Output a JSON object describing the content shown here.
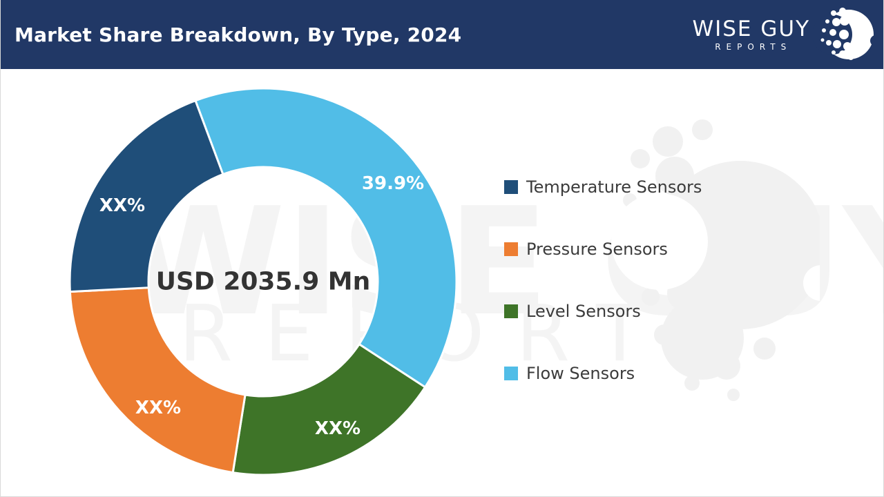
{
  "header": {
    "title": "Market Share Breakdown, By Type, 2024",
    "bg_color": "#213866",
    "logo": {
      "line1": "WISE GUY",
      "line2": "REPORTS"
    }
  },
  "watermark": {
    "line1": "WISE GUY",
    "line2": "REPORTS"
  },
  "chart_data": {
    "type": "pie",
    "subtype": "donut",
    "title": "Market Share Breakdown, By Type, 2024",
    "center_label": "USD 2035.9 Mn",
    "categories": [
      "Flow Sensors",
      "Level Sensors",
      "Pressure Sensors",
      "Temperature Sensors"
    ],
    "values_shown_as": [
      "39.9%",
      "XX%",
      "XX%",
      "XX%"
    ],
    "segments": [
      {
        "id": "flow",
        "name": "Flow Sensors",
        "label": "39.9%",
        "percent": 39.9,
        "color": "#51bde7",
        "start_deg": -20.5,
        "end_deg": 123.1
      },
      {
        "id": "level",
        "name": "Level Sensors",
        "label": "XX%",
        "percent_est": 18.3,
        "color": "#3e7428",
        "start_deg": 123.1,
        "end_deg": 189.0
      },
      {
        "id": "pressure",
        "name": "Pressure Sensors",
        "label": "XX%",
        "percent_est": 21.7,
        "color": "#ed7d31",
        "start_deg": 189.0,
        "end_deg": 267.0
      },
      {
        "id": "temperature",
        "name": "Temperature Sensors",
        "label": "XX%",
        "percent_est": 20.1,
        "color": "#1f4e79",
        "start_deg": 267.0,
        "end_deg": 339.5
      }
    ],
    "geometry": {
      "outer_radius": 280,
      "inner_radius": 166,
      "segment_gap_stroke": "#ffffff"
    },
    "legend_position": "right"
  },
  "legend": {
    "items": [
      {
        "label": "Temperature Sensors",
        "color": "#1f4e79"
      },
      {
        "label": "Pressure Sensors",
        "color": "#ed7d31"
      },
      {
        "label": "Level Sensors",
        "color": "#3e7428"
      },
      {
        "label": "Flow Sensors",
        "color": "#51bde7"
      }
    ]
  }
}
